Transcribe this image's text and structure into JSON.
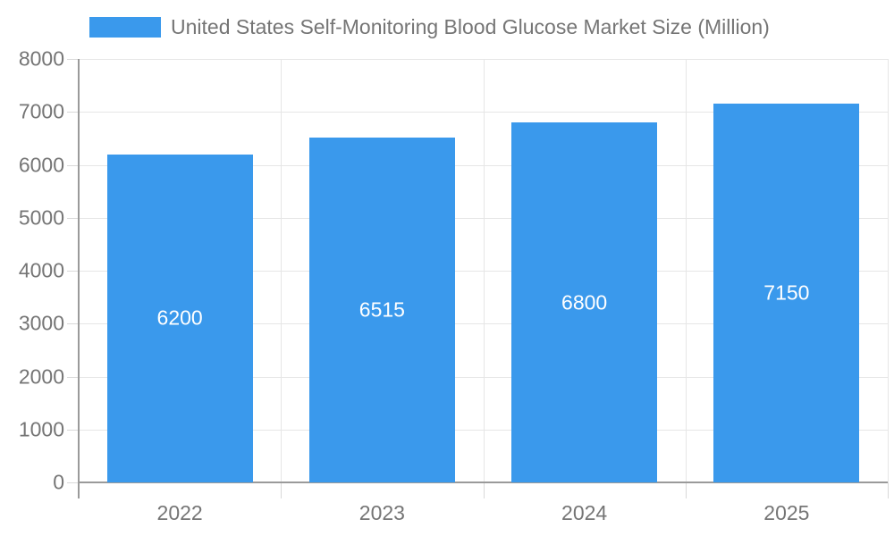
{
  "chart_data": {
    "type": "bar",
    "title": "United States Self-Monitoring Blood Glucose Market Size (Million)",
    "categories": [
      "2022",
      "2023",
      "2024",
      "2025"
    ],
    "values": [
      6200,
      6515,
      6800,
      7150
    ],
    "bar_labels": [
      "6200",
      "6515",
      "6800",
      "7150"
    ],
    "xlabel": "",
    "ylabel": "",
    "ylim": [
      0,
      8000
    ],
    "ytick_step": 1000,
    "ytick_labels": [
      "0",
      "1000",
      "2000",
      "3000",
      "4000",
      "5000",
      "6000",
      "7000",
      "8000"
    ],
    "grid": true,
    "legend": {
      "position": "top",
      "label": "United States Self-Monitoring Blood Glucose Market Size (Million)"
    },
    "colors": {
      "bar": "#3A99EC",
      "grid": "#E6E6E6",
      "tick": "#D9D9D9",
      "axis": "#9A9A9A",
      "text": "#757575",
      "bar_label": "#FFFFFF",
      "background": "#FFFFFF"
    }
  }
}
